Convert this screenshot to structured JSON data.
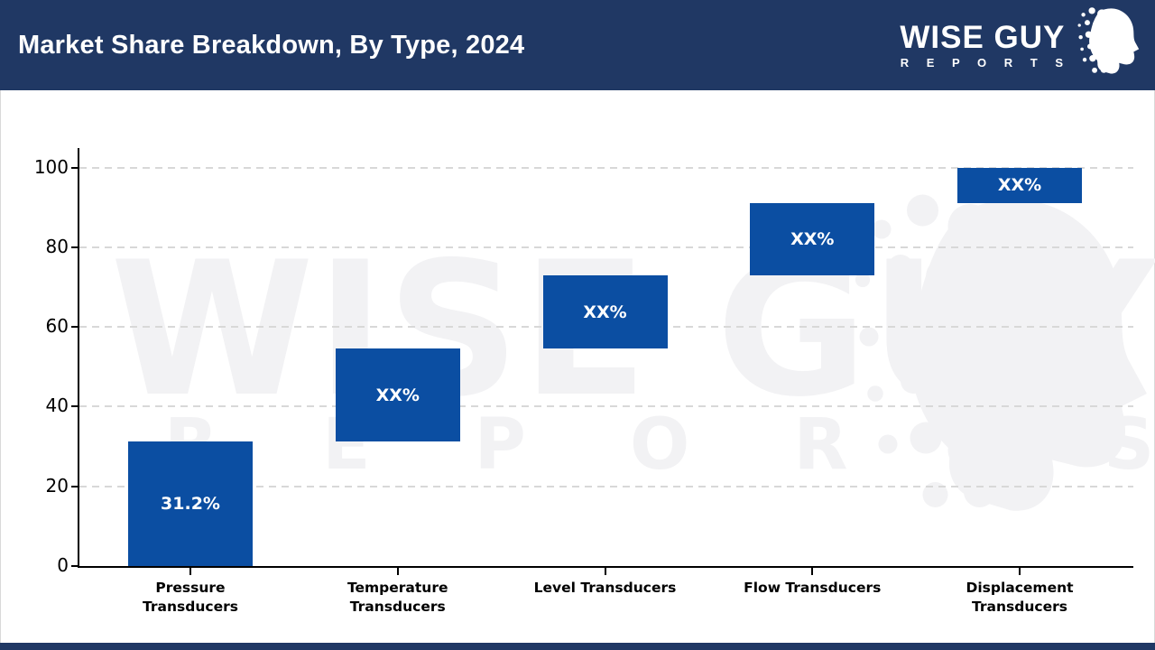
{
  "header": {
    "title": "Market Share Breakdown, By Type, 2024",
    "logo": {
      "line1": "WISE GUY",
      "line2": "REPORTS"
    }
  },
  "watermark": {
    "line1": "WISE GUY",
    "line2": "REPORTS"
  },
  "chart_data": {
    "type": "bar",
    "variant": "waterfall",
    "title": "Market Share Breakdown, By Type, 2024",
    "categories": [
      "Pressure Transducers",
      "Temperature Transducers",
      "Level Transducers",
      "Flow Transducers",
      "Displacement Transducers"
    ],
    "values": [
      31.2,
      23.3,
      18.4,
      18.1,
      9.0
    ],
    "starts": [
      0,
      31.2,
      54.5,
      72.9,
      91.0
    ],
    "cumulative": [
      31.2,
      54.5,
      72.9,
      91.0,
      100.0
    ],
    "bar_labels": [
      "31.2%",
      "XX%",
      "XX%",
      "XX%",
      "XX%"
    ],
    "xlabel": "",
    "ylabel": "",
    "ylim": [
      0,
      100
    ],
    "yticks": [
      0,
      20,
      40,
      60,
      80,
      100
    ],
    "grid": true,
    "legend": false
  },
  "colors": {
    "header_bg": "#203864",
    "footer_bg": "#203864",
    "bar_fill": "#0B4EA2",
    "bar_label": "#FFFFFF",
    "axis": "#000000",
    "gridline": "#D8D8D8",
    "watermark": "#F2F2F4",
    "border": "#D9D9D9"
  }
}
